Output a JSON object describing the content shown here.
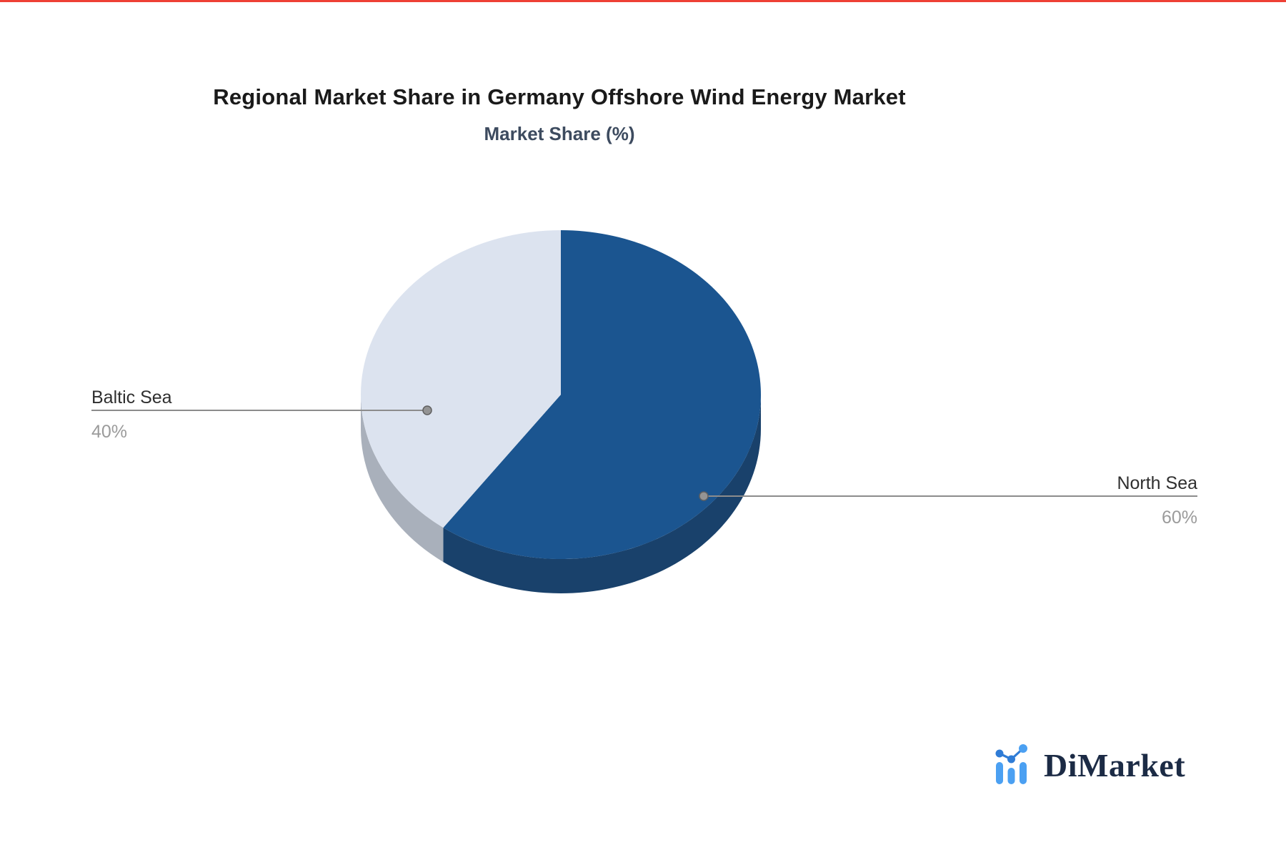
{
  "page": {
    "background": "#ffffff",
    "top_accent_color": "#ee4035"
  },
  "header": {
    "title": "Regional Market Share in Germany Offshore Wind Energy Market",
    "subtitle": "Market Share (%)"
  },
  "chart_data": {
    "type": "pie",
    "style": "3d",
    "title": "Regional Market Share in Germany Offshore Wind Energy Market",
    "subtitle": "Market Share (%)",
    "unit": "%",
    "start_angle_deg": 90,
    "direction": "clockwise",
    "legend": "none",
    "labels": "outside-leader-lines",
    "slices": [
      {
        "label": "North Sea",
        "value": 60,
        "display": "60%",
        "color": "#1B5590",
        "side_color": "#19416B"
      },
      {
        "label": "Baltic Sea",
        "value": 40,
        "display": "40%",
        "color": "#DCE3EF",
        "side_color": "#A9B0BB"
      }
    ]
  },
  "leader_style": {
    "line_color": "#8c8c8c",
    "name_color": "#2f2f2f",
    "percent_color": "#9b9b9b"
  },
  "logo": {
    "text": "DiMarket",
    "icon": "bar-chart-trend-icon",
    "text_color": "#1c2b45",
    "icon_light_blue": "#4BA0F2",
    "icon_dark_blue": "#2F7CD6"
  }
}
